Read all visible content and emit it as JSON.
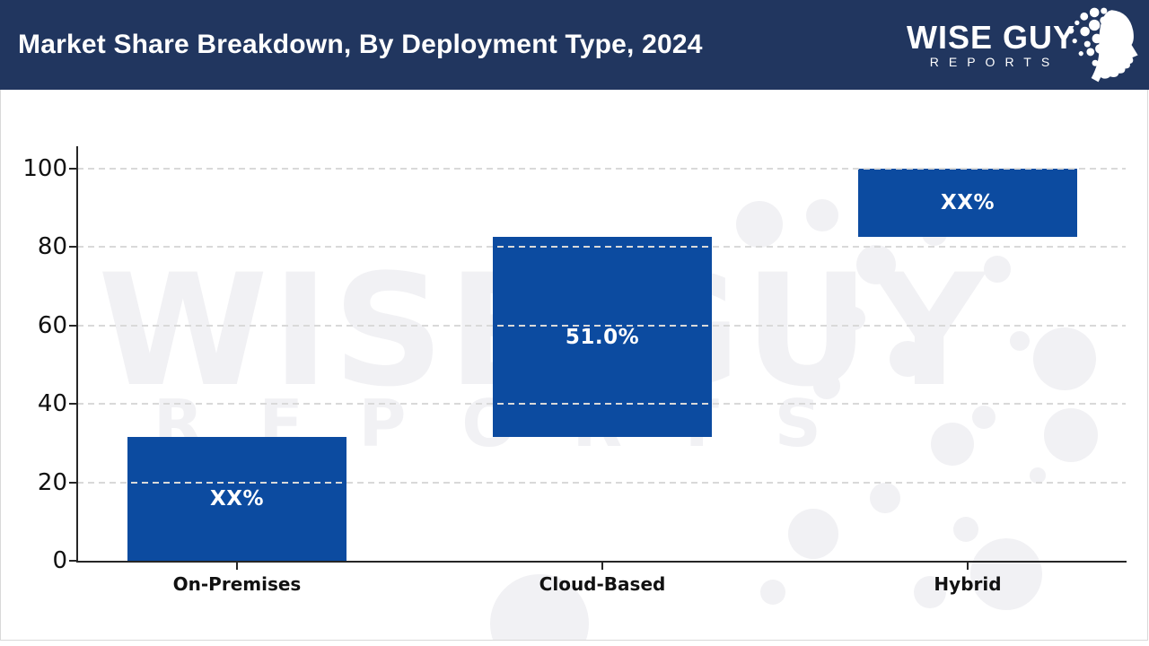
{
  "header": {
    "title": "Market Share Breakdown, By Deployment Type, 2024"
  },
  "brand": {
    "name": "WISE GUY",
    "sub": "REPORTS"
  },
  "watermark": {
    "line1": "WISE GUY",
    "line2": "REPORTS"
  },
  "colors": {
    "header_bg": "#21365F",
    "bar": "#0C4BA0",
    "axis": "#262626",
    "grid": "#D9D9D9",
    "watermark": "#F1F1F4",
    "border": "#D9D9D9",
    "bar_label": "#FFFFFF"
  },
  "chart_data": {
    "type": "bar",
    "subtype": "floating-segment-waterfall",
    "title": "Market Share Breakdown, By Deployment Type, 2024",
    "categories": [
      "On-Premises",
      "Cloud-Based",
      "Hybrid"
    ],
    "bars": [
      {
        "category": "On-Premises",
        "start": 0,
        "end": 31.5,
        "label": "XX%"
      },
      {
        "category": "Cloud-Based",
        "start": 31.5,
        "end": 82.5,
        "label": "51.0%"
      },
      {
        "category": "Hybrid",
        "start": 82.5,
        "end": 100,
        "label": "XX%"
      }
    ],
    "xlabel": "",
    "ylabel": "",
    "ylim": [
      0,
      105
    ],
    "yticks": [
      0,
      20,
      40,
      60,
      80,
      100
    ],
    "grid": "horizontal-dashed",
    "grid_above_bars": true,
    "legend": "none",
    "bar_color": "#0C4BA0",
    "label_color": "#FFFFFF"
  }
}
